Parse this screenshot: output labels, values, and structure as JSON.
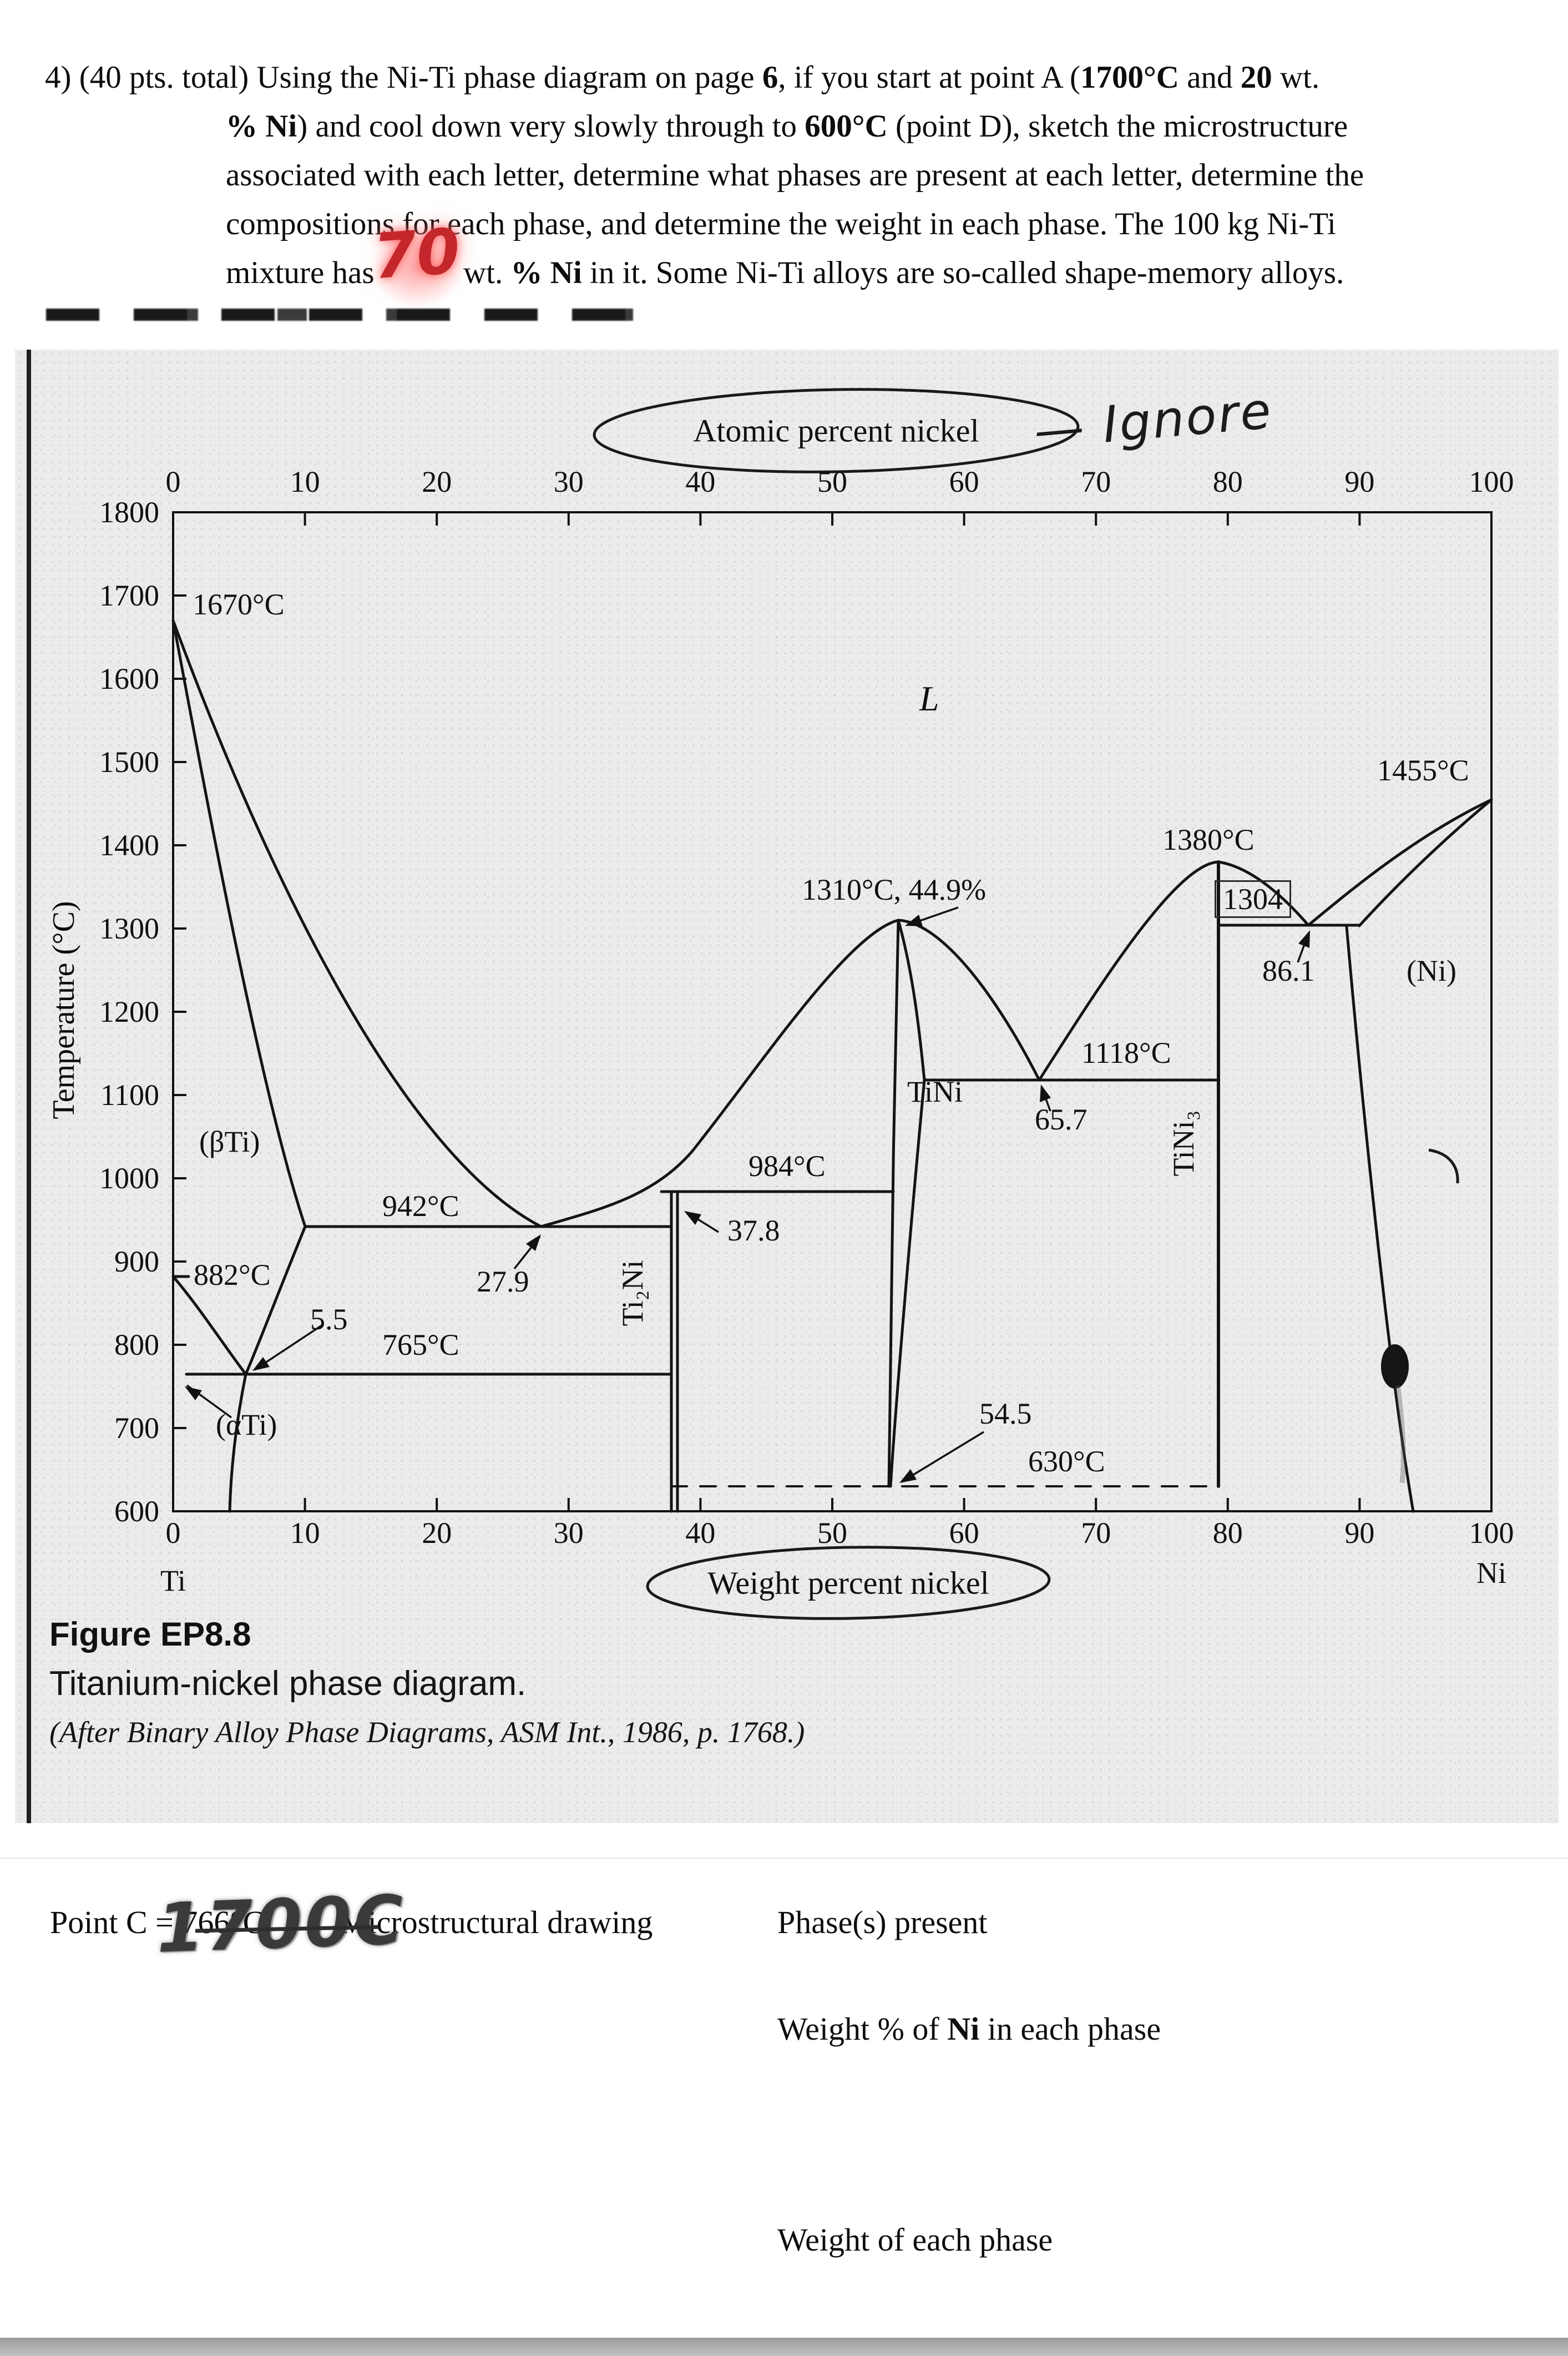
{
  "page": {
    "problem": {
      "handwritten_70": "70",
      "lines": [
        {
          "indent": false,
          "segments": [
            {
              "t": "4) (40 pts. total) Using the Ni-Ti phase diagram on page "
            },
            {
              "t": "6",
              "b": true
            },
            {
              "t": ", if you start at point A ("
            },
            {
              "t": "1700°C",
              "b": true
            },
            {
              "t": " and "
            },
            {
              "t": "20",
              "b": true
            },
            {
              "t": " wt."
            }
          ]
        },
        {
          "indent": true,
          "segments": [
            {
              "t": "% Ni",
              "b": true
            },
            {
              "t": ") and cool down very slowly through to "
            },
            {
              "t": "600°C",
              "b": true
            },
            {
              "t": " (point D), sketch the microstructure"
            }
          ]
        },
        {
          "indent": true,
          "segments": [
            {
              "t": "associated with each letter, determine what phases are present at each letter, determine the"
            }
          ]
        },
        {
          "indent": true,
          "segments": [
            {
              "t": "compositions for each phase, and determine the weight in each phase.  The 100 kg Ni-Ti"
            }
          ]
        },
        {
          "indent": true,
          "segments": [
            {
              "t": "mixture has "
            },
            {
              "gap70": true
            },
            {
              "t": " wt. "
            },
            {
              "t": "% Ni",
              "b": true
            },
            {
              "t": " in it.  Some Ni-Ti alloys are so-called shape-memory alloys."
            }
          ]
        }
      ]
    }
  },
  "figure": {
    "top_axis_label": "Atomic percent nickel",
    "top_axis_annotation": "— Ignore",
    "bottom_axis_label": "Weight percent nickel",
    "y_axis_label": "Temperature (°C)",
    "corner_left": "Ti",
    "corner_right": "Ni",
    "x_ticks": [
      "0",
      "10",
      "20",
      "30",
      "40",
      "50",
      "60",
      "70",
      "80",
      "90",
      "100"
    ],
    "y_ticks": [
      "1800",
      "1700",
      "1600",
      "1500",
      "1400",
      "1300",
      "1200",
      "1100",
      "1000",
      "900",
      "800",
      "700",
      "600"
    ],
    "labels": {
      "melt_ti": "1670°C",
      "liquid": "L",
      "melt_ni": "1455°C",
      "peak_tini3": "1380°C",
      "peak_tini": "1310°C, 44.9%",
      "e1304": "1304",
      "p861": "86.1",
      "ni_phase": "(Ni)",
      "e1118": "1118°C",
      "tini": "TiNi",
      "p657": "65.7",
      "beta_ti": "(βTi)",
      "p984": "984°C",
      "e942": "942°C",
      "p378": "37.8",
      "a882": "882°C",
      "p279": "27.9",
      "p55": "5.5",
      "e765": "765°C",
      "alpha_ti": "(αTi)",
      "p545": "54.5",
      "e630": "630°C",
      "ti2ni": "Ti₂Ni",
      "tini3": "TiNi₃"
    },
    "caption_tag": "Figure EP8.8",
    "caption_title": "Titanium-nickel phase diagram.",
    "caption_source": "(After Binary Alloy Phase Diagrams, ASM Int., 1986, p. 1768.)"
  },
  "worksheet": {
    "point_prefix": "Point C = ",
    "point_struck": "766°C",
    "handwritten_temp": "1700C",
    "col_microstructure": "Microstructural drawing",
    "col_phases": "Phase(s) present",
    "wp1": "Weight % of ",
    "wp2": "Ni",
    "wp3": " in each phase",
    "row_weight": "Weight of each phase"
  },
  "chart_data": {
    "type": "line",
    "title": "Titanium-nickel phase diagram",
    "x_axis_bottom": {
      "label": "Weight percent nickel",
      "range": [
        0,
        100
      ],
      "ticks": [
        0,
        10,
        20,
        30,
        40,
        50,
        60,
        70,
        80,
        90,
        100
      ],
      "endpoints": [
        "Ti",
        "Ni"
      ]
    },
    "x_axis_top": {
      "label": "Atomic percent nickel",
      "range": [
        0,
        100
      ],
      "ticks": [
        0,
        10,
        20,
        30,
        40,
        50,
        60,
        70,
        80,
        90,
        100
      ],
      "handwritten_annotation": "Ignore"
    },
    "y_axis": {
      "label": "Temperature (°C)",
      "range": [
        600,
        1800
      ],
      "tick_step": 100
    },
    "phase_regions": [
      "L",
      "(βTi)",
      "(αTi)",
      "Ti₂Ni",
      "TiNi",
      "TiNi₃",
      "(Ni)"
    ],
    "labeled_points": [
      {
        "label": "1670°C",
        "wt_pct_ni": 0,
        "temp_c": 1670
      },
      {
        "label": "1455°C",
        "wt_pct_ni": 100,
        "temp_c": 1455
      },
      {
        "label": "1380°C",
        "wt_pct_ni": 79,
        "temp_c": 1380
      },
      {
        "label": "1310°C, 44.9%",
        "wt_pct_ni": 55,
        "temp_c": 1310
      },
      {
        "label": "1304",
        "wt_pct_ni": 83,
        "temp_c": 1304
      },
      {
        "label": "86.1",
        "wt_pct_ni": 86.1,
        "temp_c": 1304
      },
      {
        "label": "1118°C",
        "wt_pct_ni": 69,
        "temp_c": 1118
      },
      {
        "label": "65.7",
        "wt_pct_ni": 65.7,
        "temp_c": 1118
      },
      {
        "label": "984°C",
        "wt_pct_ni": 44,
        "temp_c": 984
      },
      {
        "label": "37.8",
        "wt_pct_ni": 37.8,
        "temp_c": 984
      },
      {
        "label": "942°C",
        "wt_pct_ni": 22,
        "temp_c": 942
      },
      {
        "label": "27.9",
        "wt_pct_ni": 27.9,
        "temp_c": 942
      },
      {
        "label": "882°C",
        "wt_pct_ni": 0,
        "temp_c": 882
      },
      {
        "label": "765°C",
        "wt_pct_ni": 20,
        "temp_c": 765
      },
      {
        "label": "5.5",
        "wt_pct_ni": 5.5,
        "temp_c": 765
      },
      {
        "label": "630°C",
        "wt_pct_ni": 60,
        "temp_c": 630
      },
      {
        "label": "54.5",
        "wt_pct_ni": 54.5,
        "temp_c": 630
      }
    ]
  }
}
